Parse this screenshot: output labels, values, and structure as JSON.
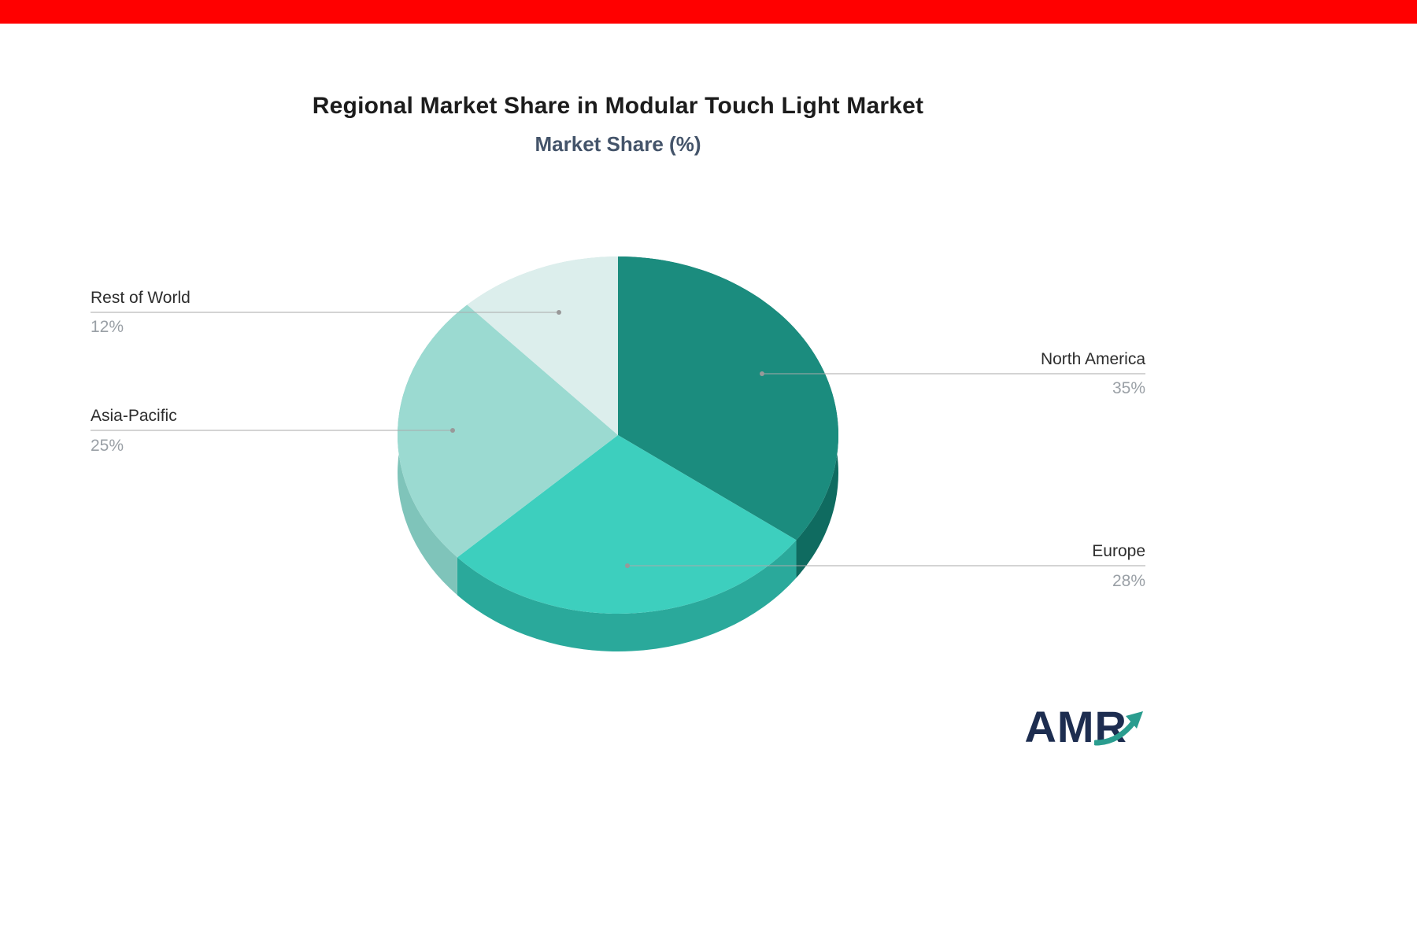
{
  "chart_data": {
    "type": "pie",
    "title": "Regional Market Share in Modular Touch Light Market",
    "subtitle": "Market Share (%)",
    "unit": "%",
    "start_angle_deg": -90,
    "direction": "clockwise",
    "legend_position": "none",
    "label_style": "leader-line callouts",
    "slices": [
      {
        "label": "North America",
        "value": 35,
        "pct_label": "35%",
        "color": "#1b8c7e",
        "side_color": "#0f6b60"
      },
      {
        "label": "Europe",
        "value": 28,
        "pct_label": "28%",
        "color": "#3dcfbe",
        "side_color": "#2aa99b"
      },
      {
        "label": "Asia-Pacific",
        "value": 25,
        "pct_label": "25%",
        "color": "#9bdad1",
        "side_color": "#7fc4ba"
      },
      {
        "label": "Rest of World",
        "value": 12,
        "pct_label": "12%",
        "color": "#dceeec",
        "side_color": "#c2ddda"
      }
    ]
  },
  "branding": {
    "logo_text": "AMR",
    "logo_color": "#1d2d50",
    "accent_color": "#2a9d8f"
  },
  "decorations": {
    "top_bar_color": "#ff0000",
    "leader_line_color": "#aaaaaa",
    "leader_dot_color": "#999999"
  }
}
